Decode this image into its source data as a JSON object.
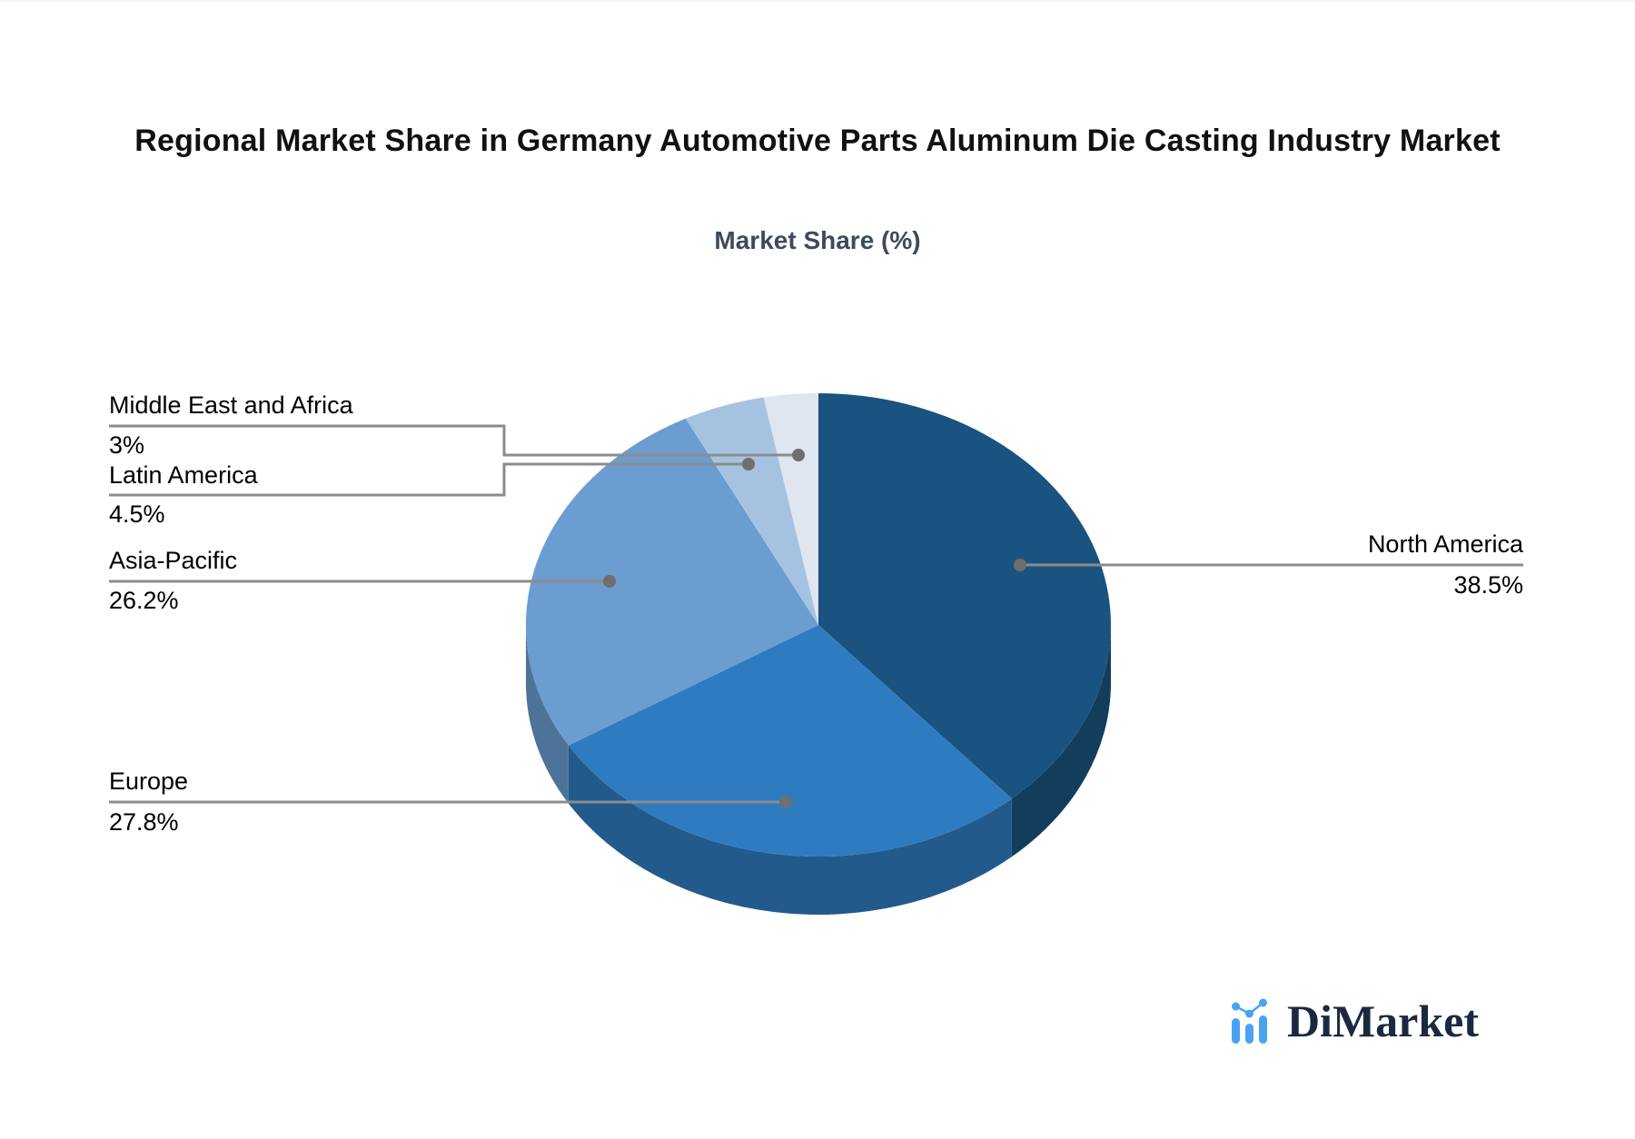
{
  "header": {
    "title": "Regional Market Share in Germany Automotive Parts Aluminum Die Casting Industry Market",
    "subtitle": "Market Share (%)"
  },
  "logo": {
    "text": "DiMarket"
  },
  "colors": {
    "background": "#ffffff",
    "title": "#111111",
    "subtitle": "#3e4a5e",
    "callout_label": "#2b2b2b",
    "callout_value": "#9b9b9b",
    "connector_line": "#8c8c8c",
    "connector_dot": "#6f6f6f",
    "logo_text": "#1b2940",
    "logo_icon": "#49a3f3"
  },
  "chart_data": {
    "type": "pie",
    "style": "3d",
    "title": "Regional Market Share in Germany Automotive Parts Aluminum Die Casting Industry Market",
    "subtitle": "Market Share (%)",
    "unit": "%",
    "direction": "clockwise",
    "start_angle_deg": 0,
    "legend_position": "outside-callouts",
    "series": [
      {
        "name": "North America",
        "value": 38.5,
        "display": "38.5%",
        "color": "#1a5380"
      },
      {
        "name": "Europe",
        "value": 27.8,
        "display": "27.8%",
        "color": "#2f7bc0"
      },
      {
        "name": "Asia-Pacific",
        "value": 26.2,
        "display": "26.2%",
        "color": "#6b9dd1"
      },
      {
        "name": "Latin America",
        "value": 4.5,
        "display": "4.5%",
        "color": "#a5c3e0"
      },
      {
        "name": "Middle East and Africa",
        "value": 3,
        "display": "3%",
        "color": "#dfe6ef"
      }
    ]
  }
}
